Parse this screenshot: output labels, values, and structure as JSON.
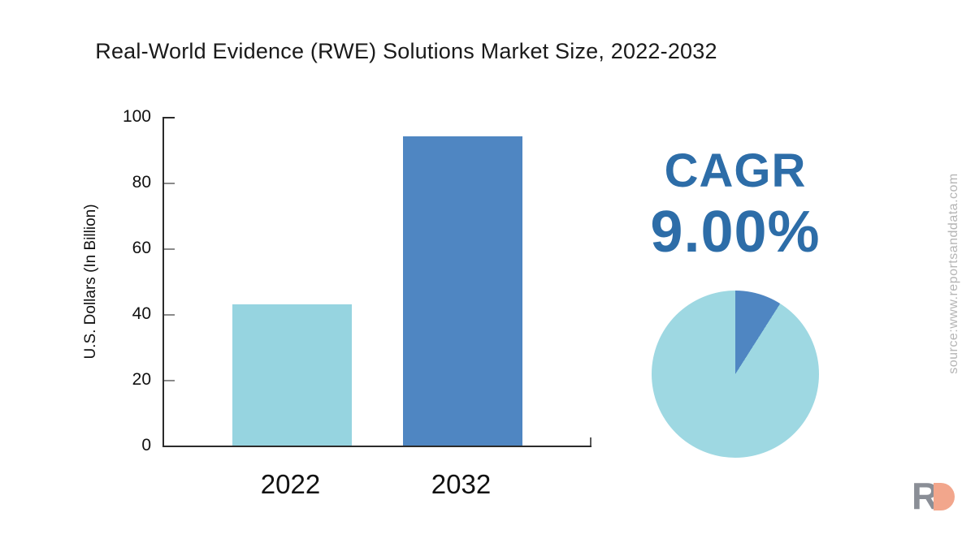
{
  "title": "Real-World Evidence (RWE) Solutions Market Size, 2022-2032",
  "chart_data": {
    "type": "bar",
    "categories": [
      "2022",
      "2032"
    ],
    "values": [
      43,
      94
    ],
    "bar_colors": [
      "#96d4e0",
      "#4f86c2"
    ],
    "title": "Real-World Evidence (RWE) Solutions Market Size, 2022-2032",
    "xlabel": "",
    "ylabel": "U.S. Dollars (In Billion)",
    "yticks": [
      0,
      20,
      40,
      60,
      80,
      100
    ],
    "ylim": [
      0,
      100
    ],
    "grid": false,
    "legend": false
  },
  "cagr": {
    "label": "CAGR",
    "value": "9.00%",
    "color": "#2d6da8"
  },
  "pie": {
    "slice_percent": 9,
    "slice_color": "#4f86c2",
    "base_color": "#9ed8e2"
  },
  "source": {
    "text": "source:www.reportsanddata.com",
    "color": "#b5b5b5"
  },
  "logo": {
    "letter": "R",
    "r_color": "#8a8e96",
    "d_color": "#f2a68c"
  }
}
